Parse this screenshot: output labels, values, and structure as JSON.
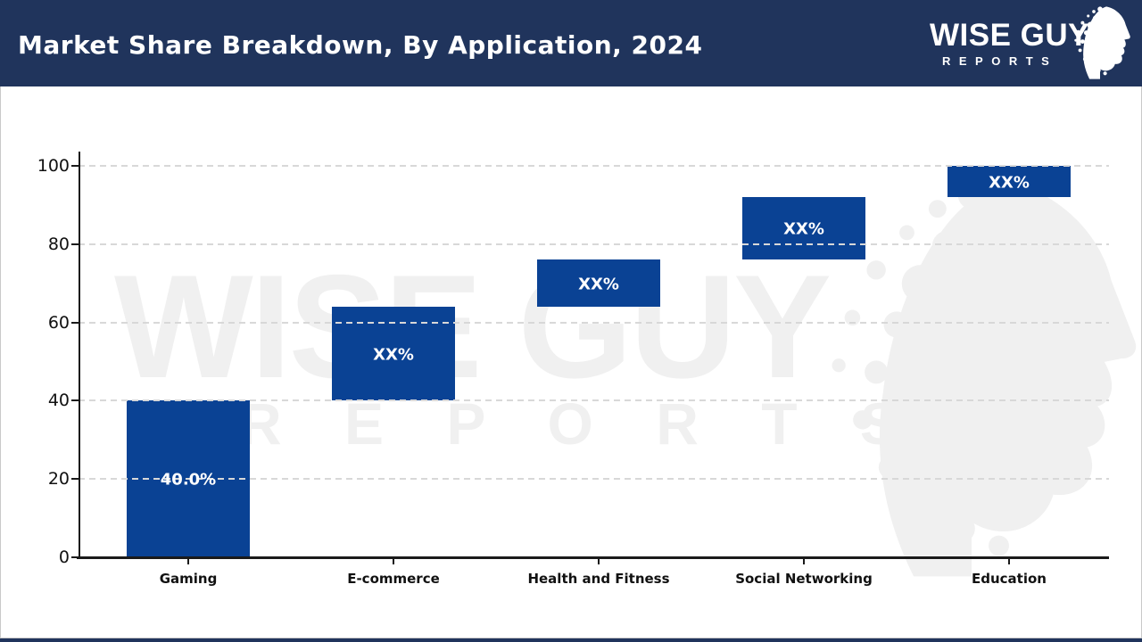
{
  "header": {
    "title": "Market Share Breakdown, By Application, 2024",
    "logo": {
      "wordmark": "WISE GUY",
      "subtext": "REPORTS"
    }
  },
  "watermark": {
    "wordmark": "WISE GUY",
    "subtext": "R E P O R T S"
  },
  "colors": {
    "header_bg": "#20345c",
    "bar": "#0a4294",
    "grid": "#d8d8d8",
    "axis": "#1a1a1a",
    "watermark": "#f0f0f0",
    "bar_label_text": "#ffffff"
  },
  "chart_data": {
    "type": "bar",
    "variant": "waterfall",
    "title": "Market Share Breakdown, By Application, 2024",
    "categories": [
      "Gaming",
      "E-commerce",
      "Health and Fitness",
      "Social Networking",
      "Education"
    ],
    "segments": [
      {
        "category": "Gaming",
        "start": 0,
        "end": 40,
        "value": 40,
        "label": "40.0%"
      },
      {
        "category": "E-commerce",
        "start": 40,
        "end": 64,
        "value": 24,
        "label": "XX%"
      },
      {
        "category": "Health and Fitness",
        "start": 64,
        "end": 76,
        "value": 12,
        "label": "XX%"
      },
      {
        "category": "Social Networking",
        "start": 76,
        "end": 92,
        "value": 16,
        "label": "XX%"
      },
      {
        "category": "Education",
        "start": 92,
        "end": 100,
        "value": 8,
        "label": "XX%"
      }
    ],
    "xlabel": "",
    "ylabel": "",
    "ylim": [
      0,
      100
    ],
    "yticks": [
      0,
      20,
      40,
      60,
      80,
      100
    ],
    "grid": "horizontal-dashed",
    "legend": "none"
  }
}
